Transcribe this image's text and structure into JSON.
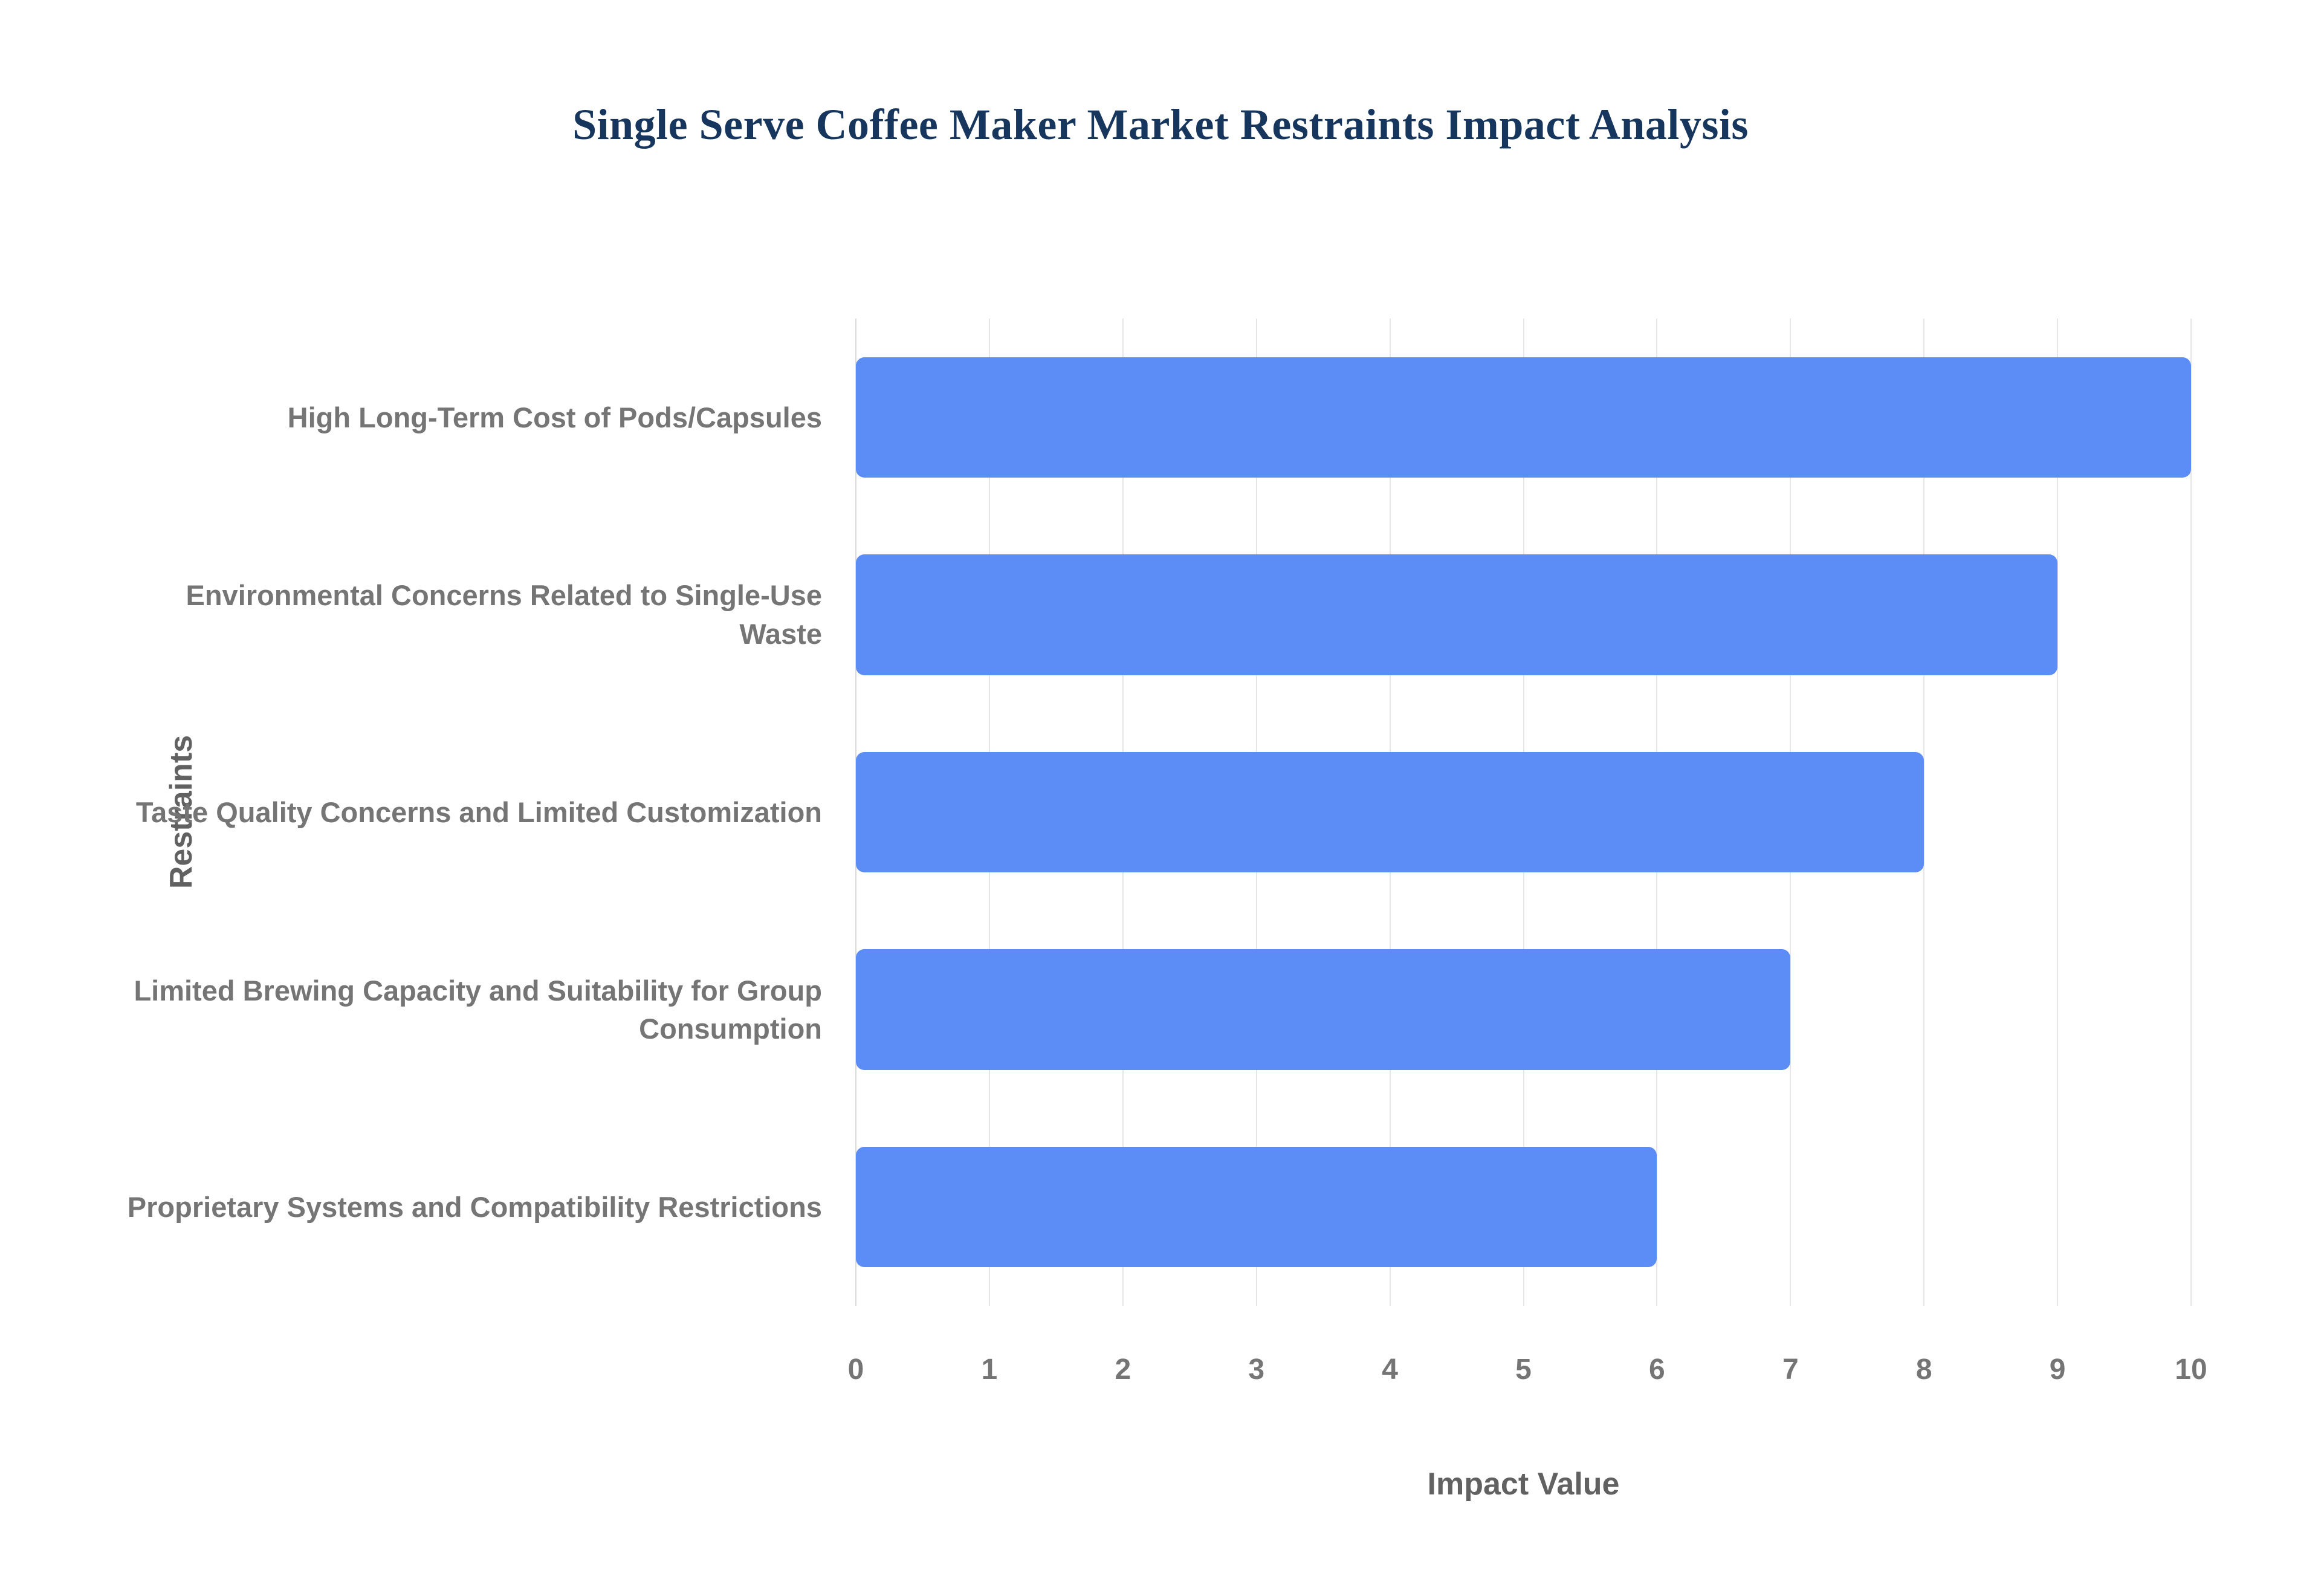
{
  "chart_data": {
    "type": "bar",
    "orientation": "horizontal",
    "title": "Single Serve Coffee Maker Market Restraints Impact Analysis",
    "xlabel": "Impact Value",
    "ylabel": "Restraints",
    "categories": [
      "High Long-Term Cost of Pods/Capsules",
      "Environmental Concerns Related to Single-Use Waste",
      "Taste Quality Concerns and Limited Customization",
      "Limited Brewing Capacity and Suitability for Group Consumption",
      "Proprietary Systems and Compatibility Restrictions"
    ],
    "values": [
      10,
      9,
      8,
      7,
      6
    ],
    "xlim": [
      0,
      10
    ],
    "xticks": [
      0,
      1,
      2,
      3,
      4,
      5,
      6,
      7,
      8,
      9,
      10
    ],
    "grid": "vertical-only",
    "legend": "none",
    "bar_color": "#5c8df6",
    "title_color": "#17365d",
    "category_label_color": "#757575",
    "tick_label_color": "#757575",
    "axis_title_color": "#616161",
    "gridline_color": "#e6e6e6",
    "zeroline_color": "#d9d9d9",
    "background_color": "#ffffff"
  }
}
